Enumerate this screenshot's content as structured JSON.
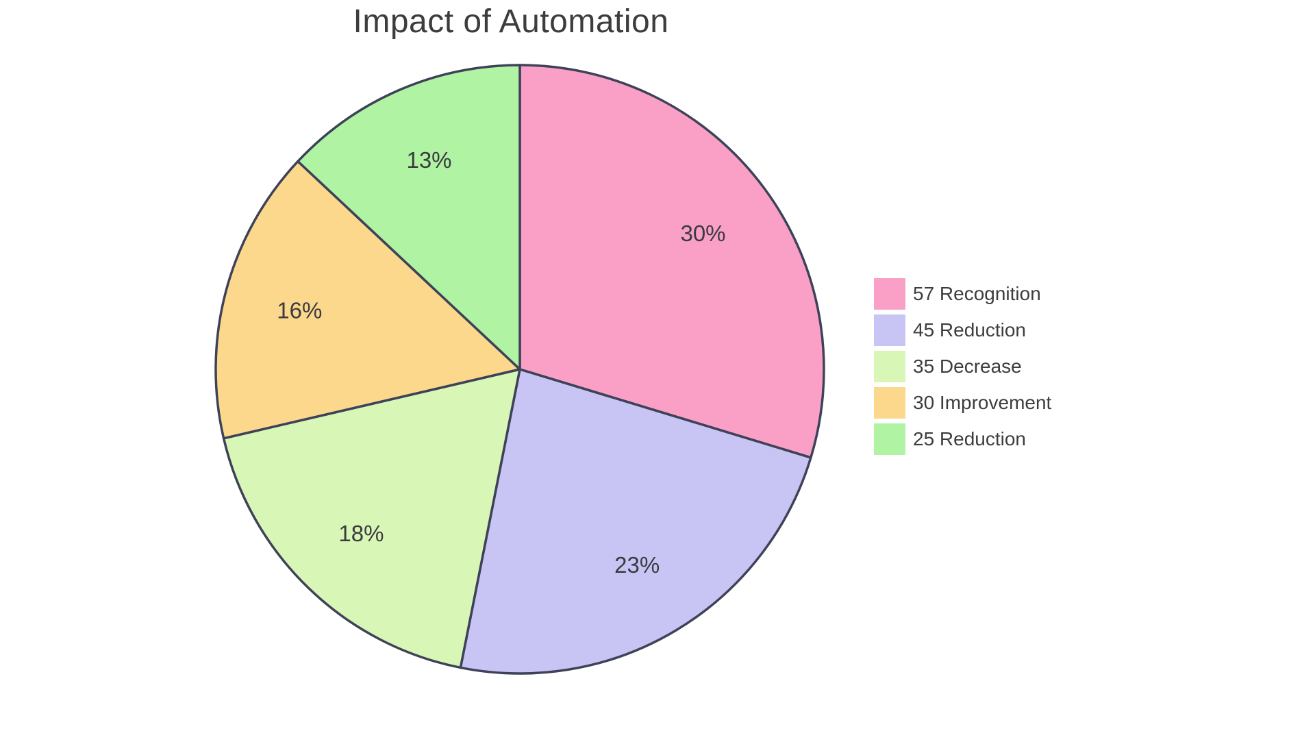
{
  "chart_data": {
    "type": "pie",
    "title": "Impact of Automation",
    "labels": [
      "57 Recognition",
      "45 Reduction",
      "35 Decrease",
      "30 Improvement",
      "25 Reduction"
    ],
    "values": [
      57,
      45,
      35,
      30,
      25
    ],
    "percent_labels": [
      "30%",
      "23%",
      "18%",
      "16%",
      "13%"
    ],
    "colors": [
      "#FAA0C7",
      "#C8C5F4",
      "#D8F6B6",
      "#FCD88D",
      "#AFF3A3"
    ],
    "outline_color": "#3E4258",
    "percent_label_color": "#3A3A40",
    "legend_text_color": "#3D3D3D",
    "title_color": "#3D3D3D",
    "direction": "clockwise",
    "start_angle": "12-o-clock",
    "legend_position": "right",
    "background_color": "#FFFFFF"
  }
}
